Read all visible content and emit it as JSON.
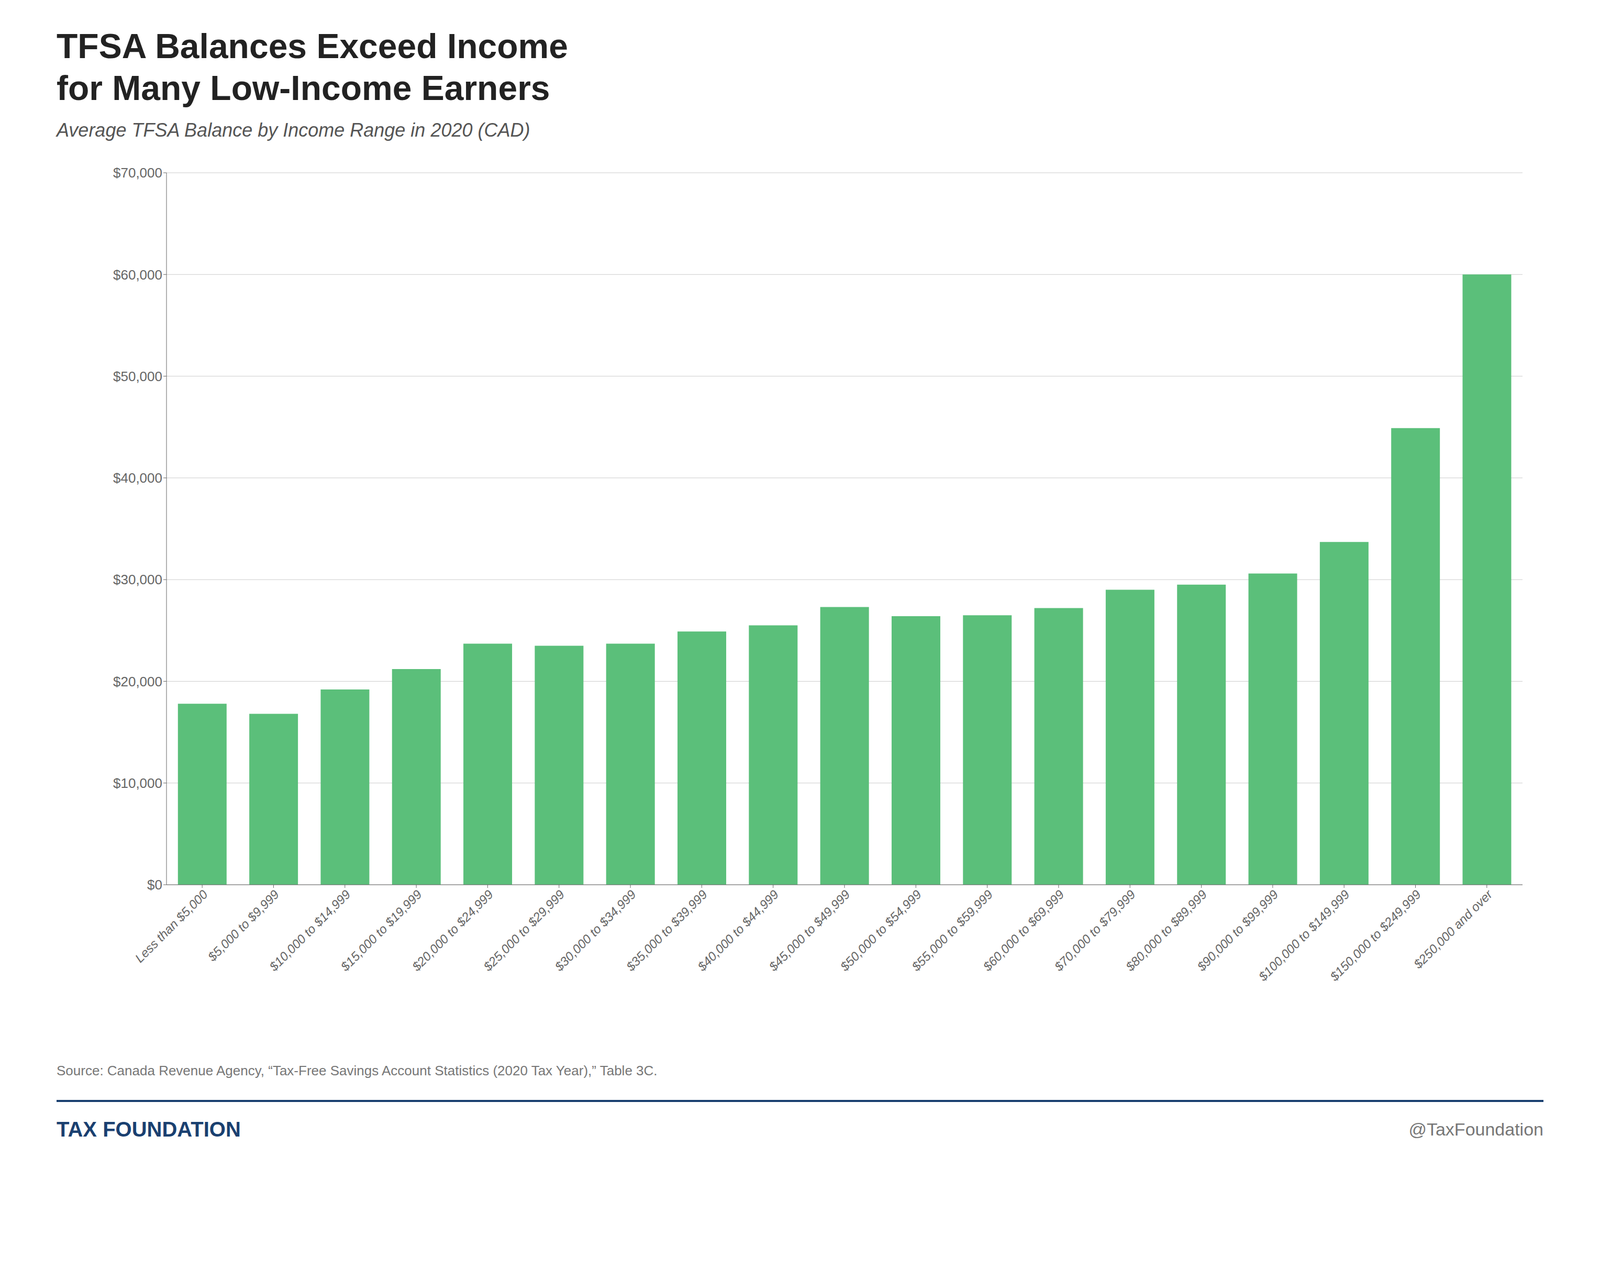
{
  "chart_data": {
    "type": "bar",
    "title": [
      "TFSA Balances Exceed Income",
      "for Many Low-Income Earners"
    ],
    "subtitle": "Average TFSA Balance by Income Range in 2020 (CAD)",
    "annotations": [
      "Source: Canada Revenue Agency, “Tax-Free Savings Account Statistics (2020 Tax Year),” Table 3C.",
      "TAX FOUNDATION",
      "@TaxFoundation"
    ],
    "categories": [
      "Less than $5,000",
      "$5,000 to $9,999",
      "$10,000 to $14,999",
      "$15,000 to $19,999",
      "$20,000 to $24,999",
      "$25,000 to $29,999",
      "$30,000 to $34,999",
      "$35,000 to $39,999",
      "$40,000 to $44,999",
      "$45,000 to $49,999",
      "$50,000 to $54,999",
      "$55,000 to $59,999",
      "$60,000 to $69,999",
      "$70,000 to $79,999",
      "$80,000 to $89,999",
      "$90,000 to $99,999",
      "$100,000 to $149,999",
      "$150,000 to $249,999",
      "$250,000 and over"
    ],
    "values": [
      17800,
      16800,
      19200,
      21200,
      23700,
      23500,
      23700,
      24900,
      25500,
      27300,
      26400,
      26500,
      27200,
      29000,
      29500,
      30600,
      33700,
      44900,
      60000
    ],
    "color": "#5bbf7a",
    "ylim": [
      0,
      70000
    ],
    "yticks": [
      {
        "value": 0,
        "label": "$0"
      },
      {
        "value": 10000,
        "label": "$10,000"
      },
      {
        "value": 20000,
        "label": "$20,000"
      },
      {
        "value": 30000,
        "label": "$30,000"
      },
      {
        "value": 40000,
        "label": "$40,000"
      },
      {
        "value": 50000,
        "label": "$50,000"
      },
      {
        "value": 60000,
        "label": "$60,000"
      },
      {
        "value": 70000,
        "label": "$70,000"
      }
    ],
    "grid": true
  }
}
